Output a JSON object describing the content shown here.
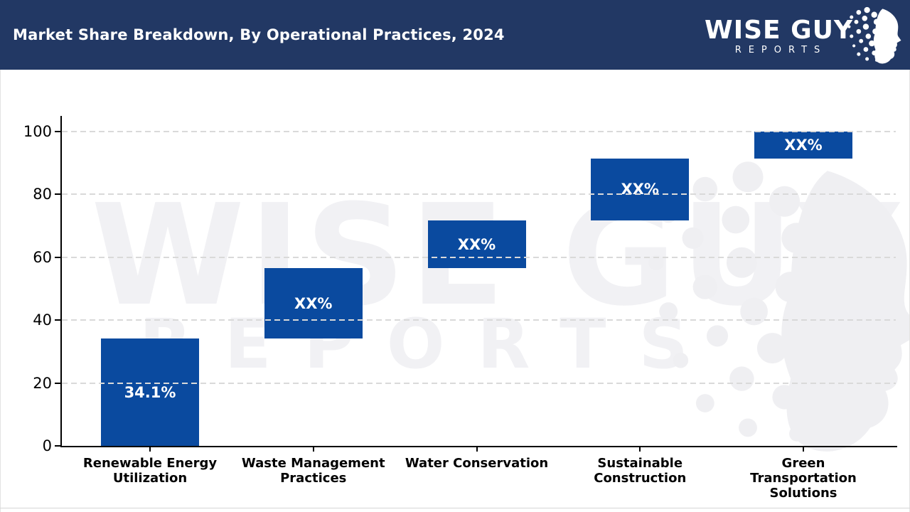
{
  "header": {
    "title": "Market Share Breakdown, By Operational Practices, 2024",
    "logo": {
      "name": "WISE GUY",
      "tagline": "REPORTS"
    }
  },
  "watermark": {
    "line1": "WISE GUY",
    "line2": "REPORTS"
  },
  "colors": {
    "header_bg": "#223864",
    "bar": "#0a4a9f",
    "grid": "#d9d9d9",
    "axis": "#000000",
    "bar_label": "#ffffff",
    "watermark": "#f1f1f4"
  },
  "chart_data": {
    "type": "bar",
    "variant": "waterfall",
    "title": "Market Share Breakdown, By Operational Practices, 2024",
    "categories": [
      "Renewable Energy Utilization",
      "Waste Management Practices",
      "Water Conservation",
      "Sustainable Construction",
      "Green Transportation Solutions"
    ],
    "category_tick_lines": [
      [
        "Renewable Energy",
        "Utilization"
      ],
      [
        "Waste Management",
        "Practices"
      ],
      [
        "Water Conservation"
      ],
      [
        "Sustainable",
        "Construction"
      ],
      [
        "Green",
        "Transportation",
        "Solutions"
      ]
    ],
    "segments": [
      {
        "category": "Renewable Energy Utilization",
        "start": 0,
        "end": 34.1,
        "label": "34.1%"
      },
      {
        "category": "Waste Management Practices",
        "start": 34.1,
        "end": 56.5,
        "label": "XX%"
      },
      {
        "category": "Water Conservation",
        "start": 56.5,
        "end": 71.7,
        "label": "XX%"
      },
      {
        "category": "Sustainable Construction",
        "start": 71.7,
        "end": 91.5,
        "label": "XX%"
      },
      {
        "category": "Green Transportation Solutions",
        "start": 91.5,
        "end": 100,
        "label": "XX%"
      }
    ],
    "ylim": [
      0,
      100
    ],
    "yticks": [
      0,
      20,
      40,
      60,
      80,
      100
    ],
    "grid": "horizontal-dashed",
    "legend": "none"
  }
}
